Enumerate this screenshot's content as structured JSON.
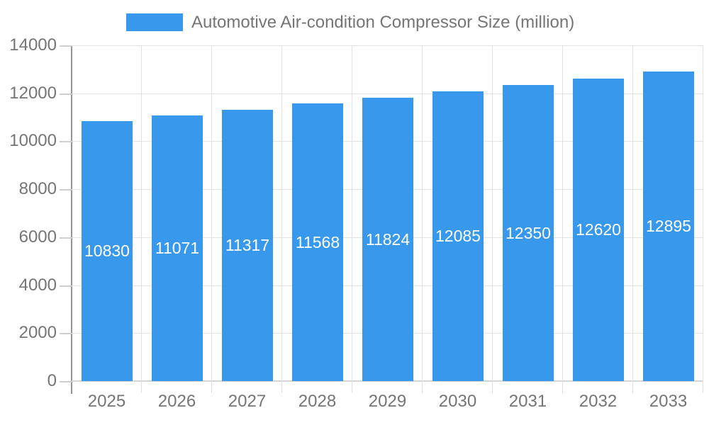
{
  "chart_data": {
    "type": "bar",
    "title": "Automotive Air-condition Compressor Size (million)",
    "categories": [
      "2025",
      "2026",
      "2027",
      "2028",
      "2029",
      "2030",
      "2031",
      "2032",
      "2033"
    ],
    "values": [
      10830,
      11071,
      11317,
      11568,
      11824,
      12085,
      12350,
      12620,
      12895
    ],
    "xlabel": "",
    "ylabel": "",
    "ylim": [
      0,
      14000
    ],
    "yticks": [
      0,
      2000,
      4000,
      6000,
      8000,
      10000,
      12000,
      14000
    ],
    "grid": true,
    "legend_position": "top",
    "value_label_position": "inside-center",
    "colors": {
      "bar": "#3898ec",
      "value_label": "#ffffff",
      "axis_label": "#757575",
      "grid_line": "#e3e3e3",
      "axis_line": "#949494",
      "background": "#ffffff"
    }
  }
}
